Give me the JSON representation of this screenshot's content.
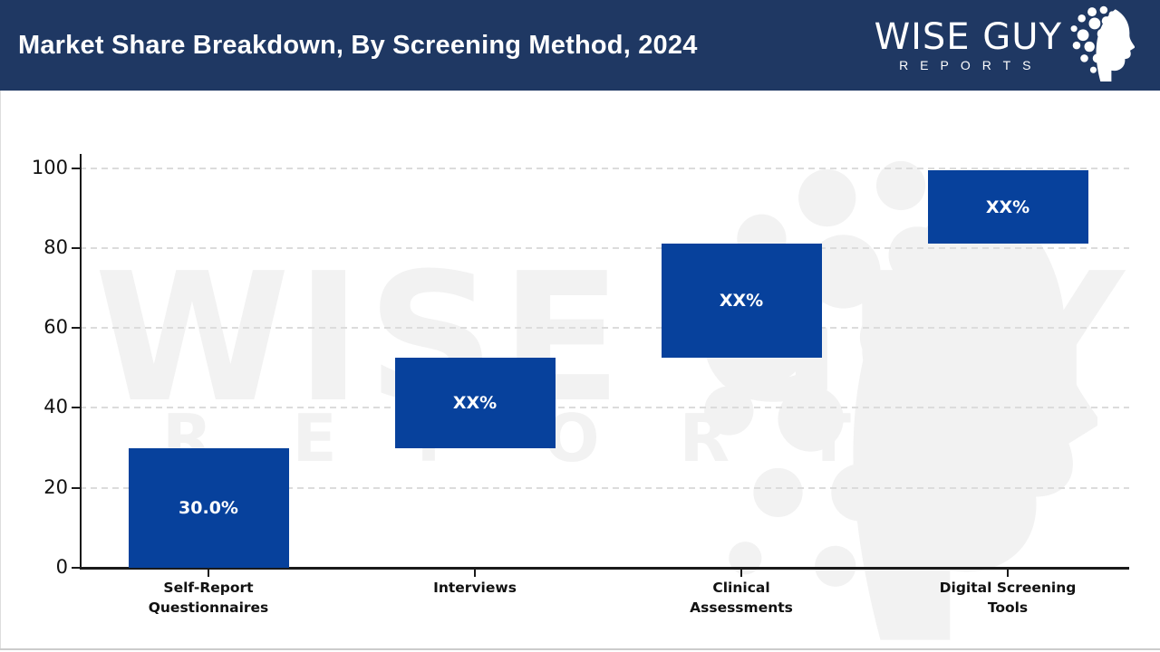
{
  "header": {
    "title": "Market Share Breakdown, By Screening Method, 2024",
    "bg_color": "#1f3863",
    "logo": {
      "line1": "WISE GUY",
      "line2": "REPORTS"
    }
  },
  "watermark": {
    "line1": "WISE GUY",
    "line2": "REPORTS"
  },
  "chart_data": {
    "type": "bar",
    "subtype": "waterfall-floating-bars",
    "title": "Market Share Breakdown, By Screening Method, 2024",
    "categories": [
      "Self-Report Questionnaires",
      "Interviews",
      "Clinical Assessments",
      "Digital Screening Tools"
    ],
    "bars": [
      {
        "category": "Self-Report Questionnaires",
        "start": 0,
        "end": 30,
        "value_label": "30.0%"
      },
      {
        "category": "Interviews",
        "start": 30,
        "end": 52.5,
        "value_label": "XX%"
      },
      {
        "category": "Clinical Assessments",
        "start": 52.5,
        "end": 81,
        "value_label": "XX%"
      },
      {
        "category": "Digital Screening Tools",
        "start": 81,
        "end": 99.5,
        "value_label": "XX%"
      }
    ],
    "y_ticks": [
      0,
      20,
      40,
      60,
      80,
      100
    ],
    "ylim": [
      0,
      104
    ],
    "xlabel": "",
    "ylabel": "",
    "grid": "horizontal-dashed",
    "legend": "none",
    "bar_color": "#07419c",
    "bar_label_color": "#ffffff",
    "axis_color": "#1a1a1a",
    "gridline_color": "#dcdcdc"
  }
}
